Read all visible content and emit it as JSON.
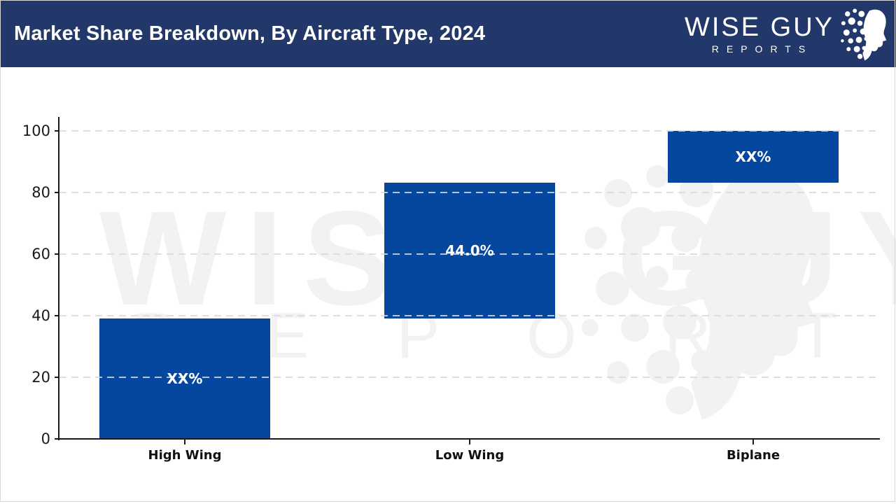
{
  "header": {
    "title": "Market Share Breakdown, By Aircraft Type, 2024",
    "logo": {
      "line1": "WISE GUY",
      "line2": "REPORTS"
    }
  },
  "watermark": {
    "line1": "WISE GUY",
    "line2": "R E P O R T S"
  },
  "chart_data": {
    "type": "bar",
    "variant": "floating-waterfall",
    "title": "Market Share Breakdown, By Aircraft Type, 2024",
    "categories": [
      "High Wing",
      "Low Wing",
      "Biplane"
    ],
    "series": [
      {
        "name": "Market Share (%)",
        "segments": [
          {
            "category": "High Wing",
            "start": 0,
            "end": 39,
            "label": "XX%"
          },
          {
            "category": "Low Wing",
            "start": 39,
            "end": 83,
            "label": "44.0%"
          },
          {
            "category": "Biplane",
            "start": 83,
            "end": 100,
            "label": "XX%"
          }
        ]
      }
    ],
    "ylim": [
      0,
      100
    ],
    "yticks": [
      0,
      20,
      40,
      60,
      80,
      100
    ],
    "xlabel": "",
    "ylabel": "",
    "grid": "horizontal-dashed",
    "legend": "none",
    "bar_color": "#05479E",
    "bar_label_color": "#FFFFFF"
  },
  "colors": {
    "header_bg": "#22386A",
    "bar": "#05479E",
    "grid": "#D9D9D9",
    "axis": "#1A1A1A",
    "watermark": "#F2F2F2",
    "border": "#D9D9D9"
  }
}
